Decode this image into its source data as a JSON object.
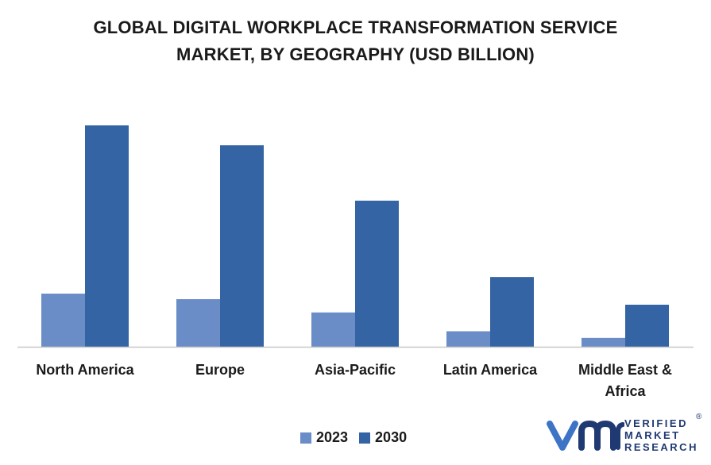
{
  "title_lines": [
    "GLOBAL DIGITAL WORKPLACE TRANSFORMATION SERVICE",
    "MARKET, BY GEOGRAPHY (USD BILLION)"
  ],
  "colors": {
    "series_2023": "#6a8cc7",
    "series_2030": "#3564a5",
    "axis": "#c8c8c8",
    "logo": "#1f3a72"
  },
  "chart_data": {
    "type": "bar",
    "title": "GLOBAL DIGITAL WORKPLACE TRANSFORMATION SERVICE MARKET, BY GEOGRAPHY (USD BILLION)",
    "categories": [
      "North America",
      "Europe",
      "Asia-Pacific",
      "Latin America",
      "Middle East & Africa"
    ],
    "series": [
      {
        "name": "2023",
        "values": [
          2.4,
          2.15,
          1.55,
          0.7,
          0.4
        ]
      },
      {
        "name": "2030",
        "values": [
          10.0,
          9.1,
          6.6,
          3.15,
          1.9
        ]
      }
    ],
    "ylim": [
      0,
      10
    ],
    "grid": false,
    "legend_position": "bottom"
  },
  "legend": {
    "items": [
      "2023",
      "2030"
    ]
  },
  "logo": {
    "line1": "VERIFIED",
    "line2": "MARKET",
    "line3": "RESEARCH",
    "mark": "®"
  }
}
